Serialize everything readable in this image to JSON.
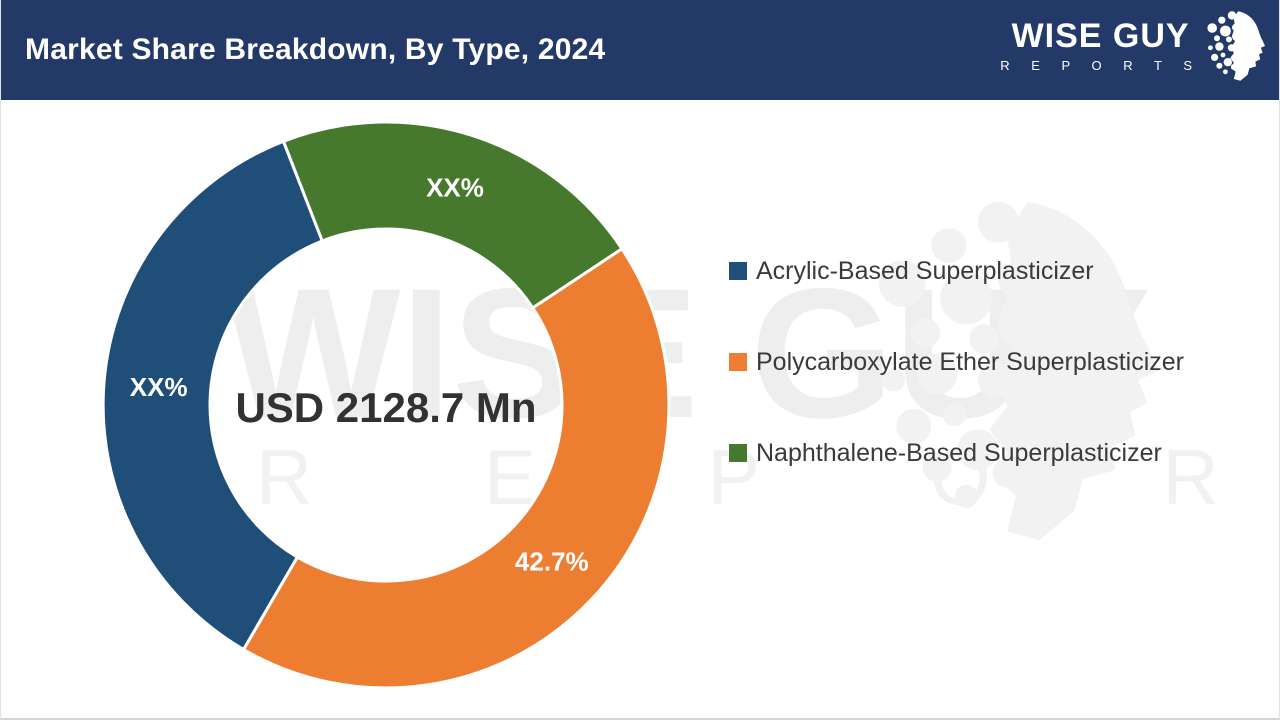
{
  "header": {
    "title": "Market Share Breakdown, By Type, 2024",
    "bg_color": "#233A68",
    "logo": {
      "line1": "WISE GUY",
      "line2": "R E P O R T S",
      "icon": "dotted-head-profile-icon"
    }
  },
  "chart_data": {
    "type": "pie",
    "subtype": "donut",
    "title": "Market Share Breakdown, By Type, 2024",
    "center_label": "USD 2128.7 Mn",
    "start_angle_deg": 33.5,
    "direction": "counterclockwise",
    "outer_radius": 283,
    "inner_radius": 176,
    "label_radius": 228,
    "slices": [
      {
        "name": "Naphthalene-Based Superplasticizer",
        "display_label": "XX%",
        "percent": 21.6,
        "color": "#46782D"
      },
      {
        "name": "Acrylic-Based Superplasticizer",
        "display_label": "XX%",
        "percent": 35.7,
        "color": "#1F4E79"
      },
      {
        "name": "Polycarboxylate Ether Superplasticizer",
        "display_label": "42.7%",
        "percent": 42.7,
        "color": "#ED7D31"
      }
    ],
    "legend_position": "right",
    "grid": false
  },
  "legend": {
    "items": [
      {
        "label": "Acrylic-Based Superplasticizer",
        "color": "#1F4E79"
      },
      {
        "label": "Polycarboxylate Ether Superplasticizer",
        "color": "#ED7D31"
      },
      {
        "label": "Naphthalene-Based Superplasticizer",
        "color": "#46782D"
      }
    ]
  },
  "watermark": {
    "line1": "WISE GUY",
    "line2": "R E P O R T S",
    "icon": "dotted-head-profile-icon"
  }
}
